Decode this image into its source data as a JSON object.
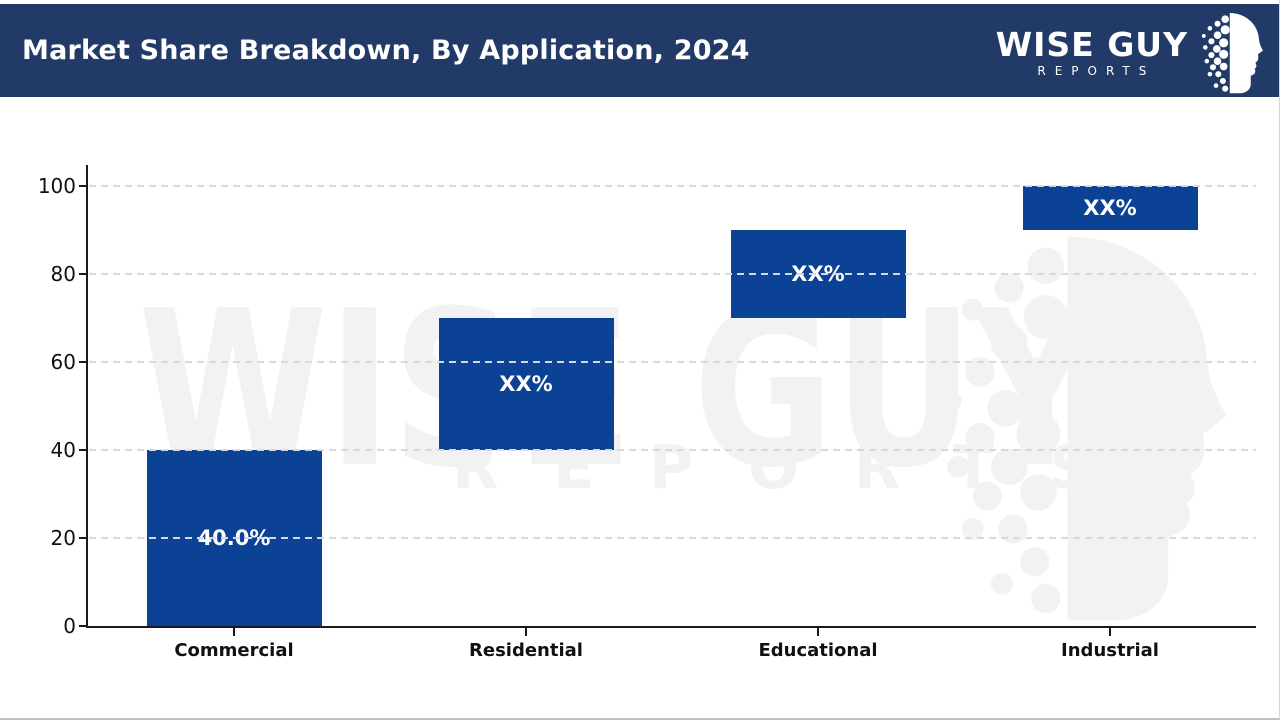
{
  "header": {
    "title": "Market Share Breakdown, By Application, 2024",
    "logo": {
      "line1": "WISE GUY",
      "line2": "REPORTS"
    }
  },
  "watermark": {
    "line1": "WISE GUY",
    "line2": "REPORTS"
  },
  "colors": {
    "header_bg": "#223A68",
    "bar": "#0B4295",
    "grid": "#D9D9D9",
    "axis": "#1A1A1A",
    "bar_label": "#FFFFFF",
    "watermark": "#F2F2F2"
  },
  "chart_data": {
    "type": "bar",
    "subtype": "waterfall",
    "title": "Market Share Breakdown, By Application, 2024",
    "categories": [
      "Commercial",
      "Residential",
      "Educational",
      "Industrial"
    ],
    "segments": [
      {
        "category": "Commercial",
        "start": 0,
        "end": 40,
        "label": "40.0%"
      },
      {
        "category": "Residential",
        "start": 40,
        "end": 70,
        "label": "XX%"
      },
      {
        "category": "Educational",
        "start": 70,
        "end": 90,
        "label": "XX%"
      },
      {
        "category": "Industrial",
        "start": 90,
        "end": 100,
        "label": "XX%"
      }
    ],
    "yticks": [
      0,
      20,
      40,
      60,
      80,
      100
    ],
    "ylim": [
      0,
      105
    ],
    "xlabel": "",
    "ylabel": "",
    "grid": "horizontal-dashed",
    "legend": "none"
  }
}
